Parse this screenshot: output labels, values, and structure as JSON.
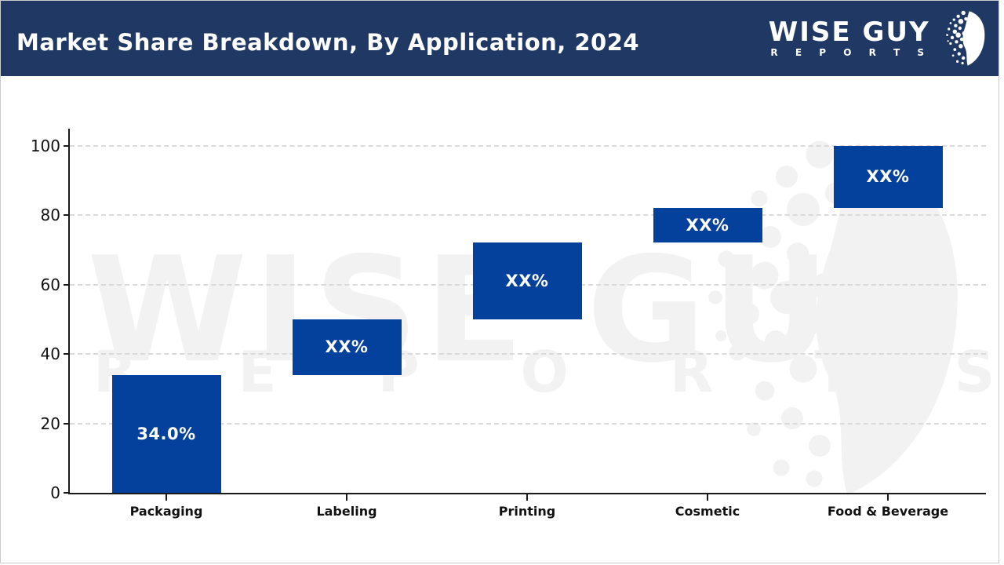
{
  "header": {
    "title": "Market Share Breakdown, By Application, 2024",
    "logo": {
      "line1": "WISE GUY",
      "line2": "R E P O R T S"
    }
  },
  "watermark": {
    "line1": "WISE GUY",
    "line2": "R E P O R T S"
  },
  "colors": {
    "header_bg": "#1f3864",
    "bar": "#04419c",
    "bar_label": "#ffffff",
    "axis": "#1a1a1a",
    "grid": "#dadada",
    "watermark": "#f2f2f2"
  },
  "chart_data": {
    "type": "bar",
    "subtype": "waterfall",
    "title": "Market Share Breakdown, By Application, 2024",
    "categories": [
      "Packaging",
      "Labeling",
      "Printing",
      "Cosmetic",
      "Food & Beverage"
    ],
    "segments": [
      {
        "category": "Packaging",
        "start": 0,
        "end": 34,
        "increment": 34,
        "label": "34.0%"
      },
      {
        "category": "Labeling",
        "start": 34,
        "end": 50,
        "increment": 16,
        "label": "XX%"
      },
      {
        "category": "Printing",
        "start": 50,
        "end": 72,
        "increment": 22,
        "label": "XX%"
      },
      {
        "category": "Cosmetic",
        "start": 72,
        "end": 82,
        "increment": 10,
        "label": "XX%"
      },
      {
        "category": "Food & Beverage",
        "start": 82,
        "end": 100,
        "increment": 18,
        "label": "XX%"
      }
    ],
    "xlabel": "",
    "ylabel": "",
    "ylim": [
      0,
      100
    ],
    "yticks": [
      0,
      20,
      40,
      60,
      80,
      100
    ],
    "grid": "horizontal-dashed",
    "legend": "none",
    "units": "percent"
  }
}
